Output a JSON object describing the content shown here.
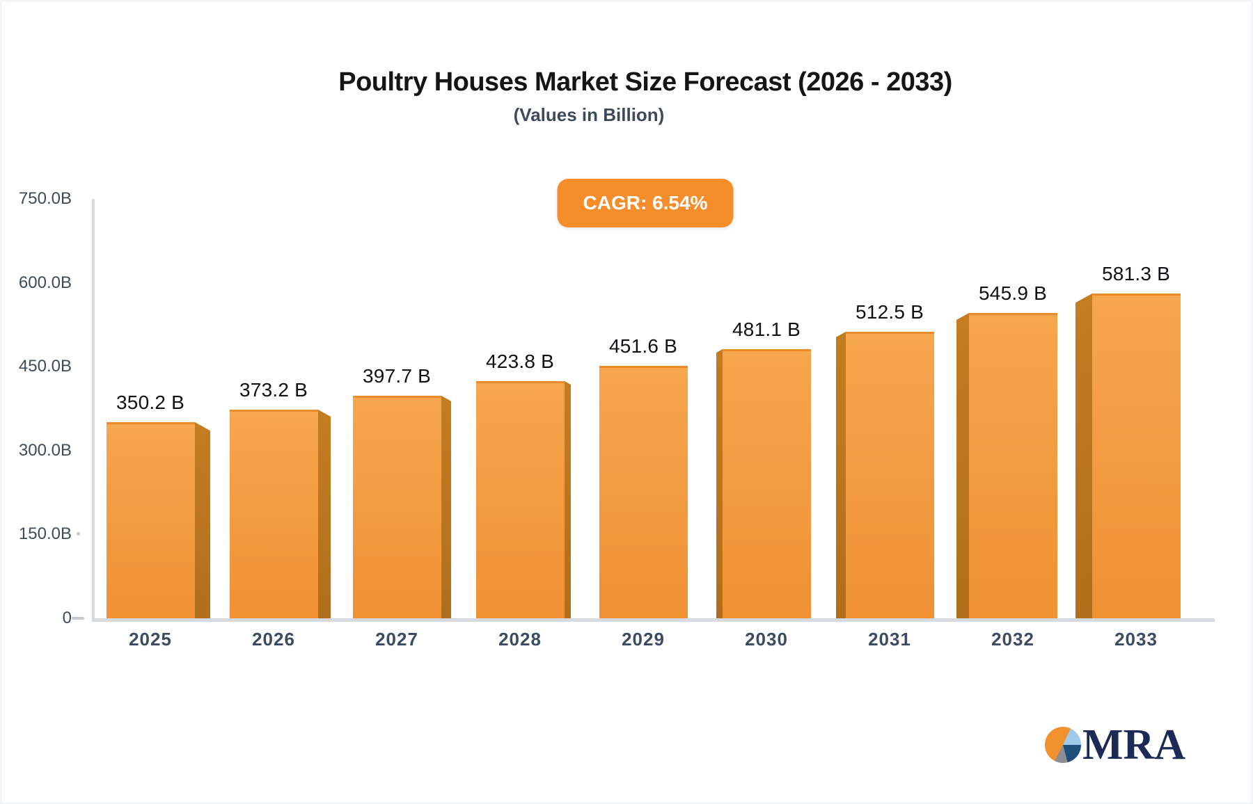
{
  "header": {
    "title": "Poultry Houses Market Size Forecast (2026 - 2033)",
    "subtitle": "(Values in Billion)"
  },
  "cagr_badge": {
    "label": "CAGR: 6.54%"
  },
  "chart_data": {
    "type": "bar",
    "style": "3d-perspective-bars",
    "title": "Poultry Houses Market Size Forecast (2026 - 2033)",
    "subtitle": "(Values in Billion)",
    "cagr_annotation": "CAGR: 6.54%",
    "categories": [
      "2025",
      "2026",
      "2027",
      "2028",
      "2029",
      "2030",
      "2031",
      "2032",
      "2033"
    ],
    "values": [
      350.2,
      373.2,
      397.7,
      423.8,
      451.6,
      481.1,
      512.5,
      545.9,
      581.3
    ],
    "bar_labels": [
      "350.2 B",
      "373.2 B",
      "397.7 B",
      "423.8 B",
      "451.6 B",
      "481.1 B",
      "512.5 B",
      "545.9 B",
      "581.3 B"
    ],
    "unit": "B",
    "xlabel": "",
    "ylabel": "",
    "ylim": [
      0,
      750
    ],
    "yticks": [
      {
        "value": 750,
        "label": "750.0B"
      },
      {
        "value": 600,
        "label": "600.0B"
      },
      {
        "value": 450,
        "label": "450.0B"
      },
      {
        "value": 300,
        "label": "300.0B"
      },
      {
        "value": 150,
        "label": "150.0B"
      },
      {
        "value": 0,
        "label": "0"
      }
    ],
    "grid": false,
    "legend": "none",
    "colors": {
      "bar_face_top": "#f6a64e",
      "bar_face_bottom": "#f09134",
      "bar_top_edge": "#ea8c2c",
      "bar_side": "#b06e1c",
      "badge_bg": "#f68d2b",
      "axis_line": "#d6d9de",
      "tick_text": "#3e4a5c",
      "value_text": "#101114"
    }
  },
  "logo": {
    "text": "MRA",
    "text_color": "#1e2a56",
    "pie_colors": {
      "orange": "#f0912d",
      "light_blue": "#9fcbe8",
      "navy": "#1f4e79",
      "gray": "#8d8d95"
    }
  }
}
